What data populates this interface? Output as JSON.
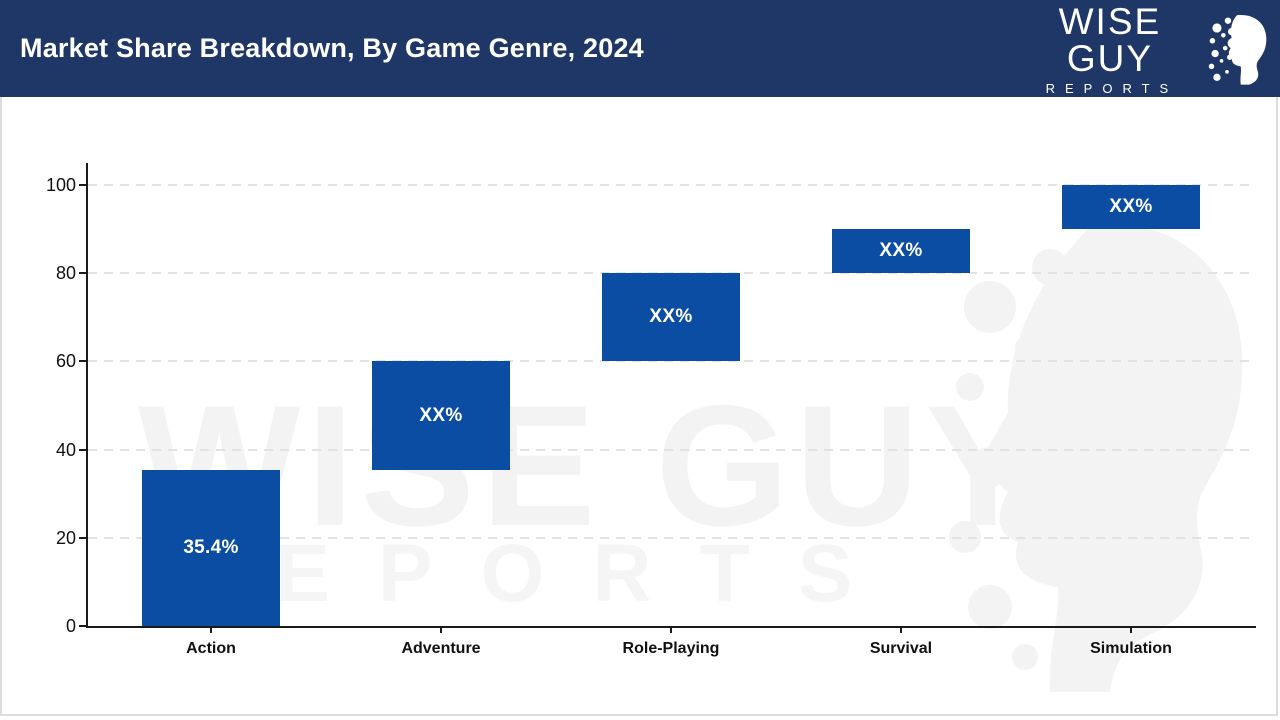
{
  "header": {
    "title": "Market Share Breakdown, By Game Genre, 2024",
    "bg_color": "#1e3766",
    "logo": {
      "line1": "WISE GUY",
      "line2": "REPORTS",
      "head_icon": "dotted-face-profile"
    }
  },
  "watermark": {
    "line1": "WISE GUY",
    "line2": "REPORTS",
    "color": "#f3f3f3"
  },
  "chart_data": {
    "type": "bar",
    "subtype": "waterfall",
    "title": "Market Share Breakdown, By Game Genre, 2024",
    "categories": [
      "Action",
      "Adventure",
      "Role-Playing",
      "Survival",
      "Simulation"
    ],
    "bars": [
      {
        "category": "Action",
        "start": 0,
        "end": 35.4,
        "label": "35.4%"
      },
      {
        "category": "Adventure",
        "start": 35.4,
        "end": 60,
        "label": "XX%"
      },
      {
        "category": "Role-Playing",
        "start": 60,
        "end": 80,
        "label": "XX%"
      },
      {
        "category": "Survival",
        "start": 80,
        "end": 90,
        "label": "XX%"
      },
      {
        "category": "Simulation",
        "start": 90,
        "end": 100,
        "label": "XX%"
      }
    ],
    "yticks": [
      0,
      20,
      40,
      60,
      80,
      100
    ],
    "ylim": [
      0,
      105
    ],
    "xlabel": "",
    "ylabel": "",
    "bar_color": "#0b4da2",
    "grid": "horizontal-dashed",
    "gridline_color": "#e2e2e2",
    "legend": "none"
  }
}
